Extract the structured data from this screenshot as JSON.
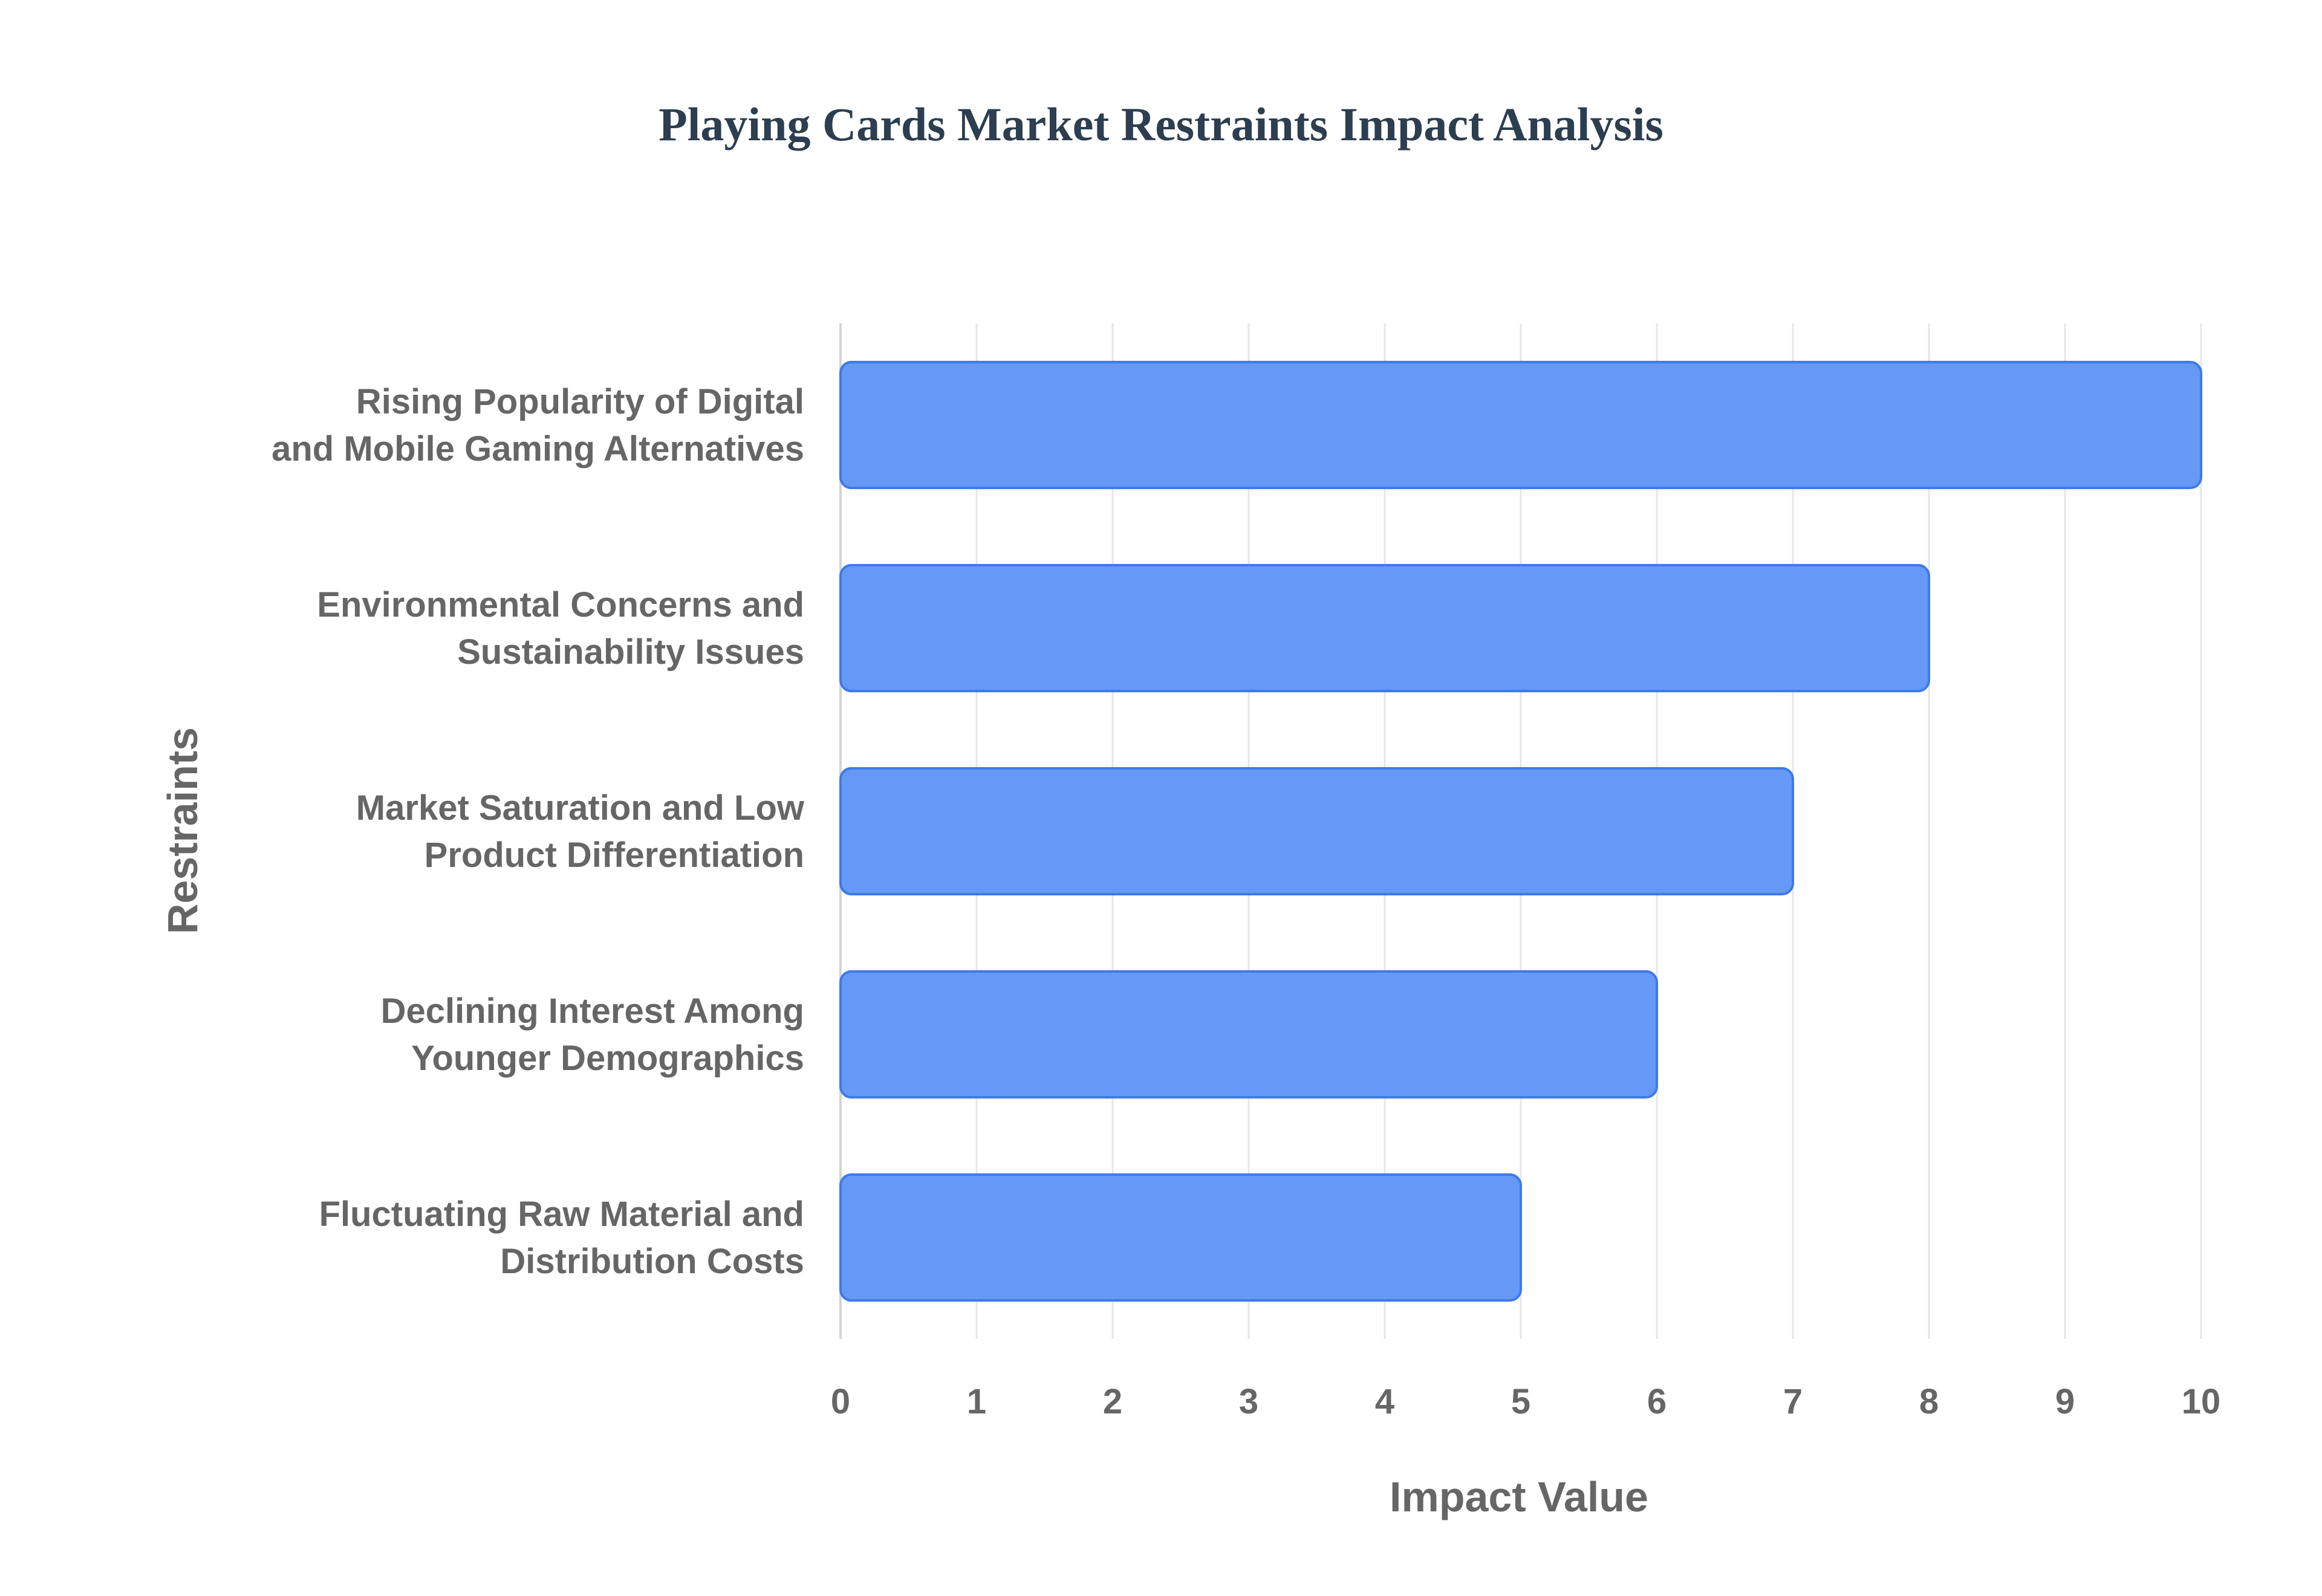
{
  "chart_data": {
    "type": "bar",
    "orientation": "horizontal",
    "title": "Playing Cards Market Restraints Impact Analysis",
    "xlabel": "Impact Value",
    "ylabel": "Restraints",
    "categories": [
      [
        "Rising Popularity of Digital",
        "and Mobile Gaming Alternatives"
      ],
      [
        "Environmental Concerns and",
        "Sustainability Issues"
      ],
      [
        "Market Saturation and Low",
        "Product Differentiation"
      ],
      [
        "Declining Interest Among",
        "Younger Demographics"
      ],
      [
        "Fluctuating Raw Material and",
        "Distribution Costs"
      ]
    ],
    "values": [
      10,
      8,
      7,
      6,
      5
    ],
    "xlim": [
      0,
      10
    ],
    "xticks": [
      "0",
      "1",
      "2",
      "3",
      "4",
      "5",
      "6",
      "7",
      "8",
      "9",
      "10"
    ],
    "grid": true,
    "legend": "none",
    "bar_color": "#6699f5",
    "bar_edge_color": "#3d7ae8"
  }
}
